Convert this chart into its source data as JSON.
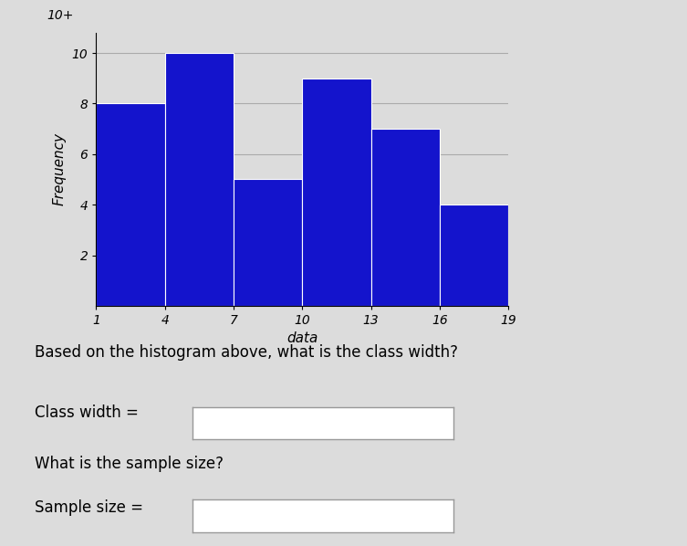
{
  "bin_edges": [
    1,
    4,
    7,
    10,
    13,
    16,
    19
  ],
  "frequencies": [
    8,
    10,
    5,
    9,
    7,
    4
  ],
  "bar_color": "#1414cc",
  "xlabel": "data",
  "ylabel": "Frequency",
  "yticks": [
    2,
    4,
    6,
    8,
    10
  ],
  "xticks": [
    1,
    4,
    7,
    10,
    13,
    16,
    19
  ],
  "ylim": [
    0,
    10.8
  ],
  "xlim": [
    1,
    19
  ],
  "bg_color": "#dcdcdc",
  "text_q1": "Based on the histogram above, what is the class width?",
  "text_q2": "Class width =",
  "text_q3": "What is the sample size?",
  "text_q4": "Sample size ="
}
